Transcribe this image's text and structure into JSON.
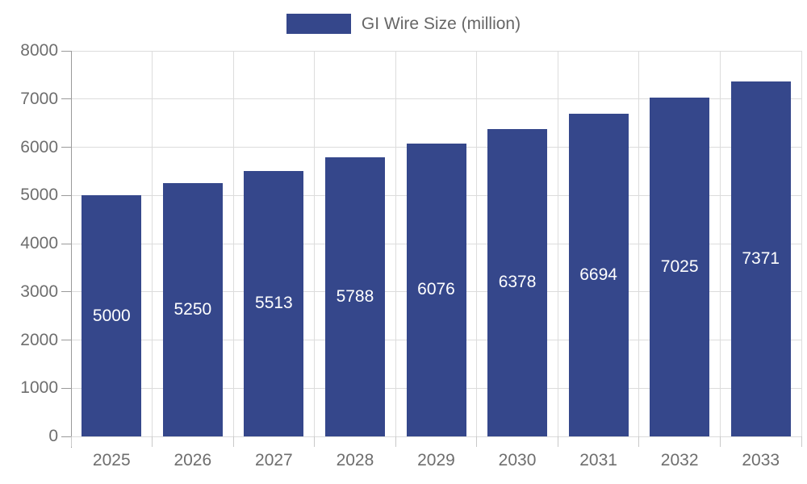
{
  "legend": {
    "label": "GI Wire Size (million)"
  },
  "colors": {
    "bar": "#35478B",
    "bar_label": "#ffffff",
    "axis_text": "#6e6e6e",
    "legend_text": "#666666",
    "grid": "#dcdcdc",
    "axis_line": "#9a9a9a",
    "tick": "#c9c9c9",
    "background": "#ffffff"
  },
  "chart_data": {
    "type": "bar",
    "title": "",
    "xlabel": "",
    "ylabel": "",
    "categories": [
      "2025",
      "2026",
      "2027",
      "2028",
      "2029",
      "2030",
      "2031",
      "2032",
      "2033"
    ],
    "series": [
      {
        "name": "GI Wire Size (million)",
        "values": [
          5000,
          5250,
          5513,
          5788,
          6076,
          6378,
          6694,
          7025,
          7371
        ]
      }
    ],
    "ylim": [
      0,
      8000
    ],
    "ytick_interval": 1000,
    "ytick_labels": [
      "0",
      "1000",
      "2000",
      "3000",
      "4000",
      "5000",
      "6000",
      "7000",
      "8000"
    ],
    "grid": true,
    "legend_position": "top-center",
    "bar_label_position": "inside-middle"
  }
}
